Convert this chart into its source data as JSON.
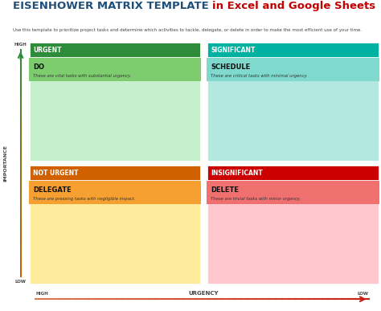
{
  "title_part1": "EISENHOWER MATRIX TEMPLATE ",
  "title_part2": "in Excel and Google Sheets",
  "subtitle": "Use this template to prioritize project tasks and determine which activities to tackle, delegate, or delete in order to make the most efficient use of your time.",
  "title_color1": "#1f4e79",
  "title_color2": "#c00000",
  "subtitle_color": "#444444",
  "background_color": "#ffffff",
  "quadrants": [
    {
      "label": "URGENT",
      "sublabel": "DO",
      "description": "These are vital tasks with substantial urgency.",
      "header_color": "#2e8b3a",
      "subheader_color": "#7dcc6e",
      "body_color": "#c6efce",
      "label_color": "#ffffff",
      "sublabel_color": "#111111",
      "desc_color": "#333333"
    },
    {
      "label": "SIGNIFICANT",
      "sublabel": "SCHEDULE",
      "description": "These are critical tasks with minimal urgency.",
      "header_color": "#00b0a0",
      "subheader_color": "#7fd9cc",
      "body_color": "#b2e8e0",
      "label_color": "#ffffff",
      "sublabel_color": "#111111",
      "desc_color": "#333333"
    },
    {
      "label": "NOT URGENT",
      "sublabel": "DELEGATE",
      "description": "These are pressing tasks with negligible impact.",
      "header_color": "#d06000",
      "subheader_color": "#f5a030",
      "body_color": "#ffeb9c",
      "label_color": "#ffffff",
      "sublabel_color": "#111111",
      "desc_color": "#333333"
    },
    {
      "label": "INSIGNIFICANT",
      "sublabel": "DELETE",
      "description": "These are trivial tasks with minor urgency.",
      "header_color": "#cc0000",
      "subheader_color": "#f07070",
      "body_color": "#ffc7ce",
      "label_color": "#ffffff",
      "sublabel_color": "#111111",
      "desc_color": "#333333"
    }
  ],
  "importance_label": "IMPORTANCE",
  "urgency_label": "URGENCY",
  "high_label": "HIGH",
  "low_label": "LOW",
  "imp_arrow_color_top": "#2e8b3a",
  "imp_arrow_color_bottom": "#d06000",
  "urg_arrow_color": "#cc4400"
}
